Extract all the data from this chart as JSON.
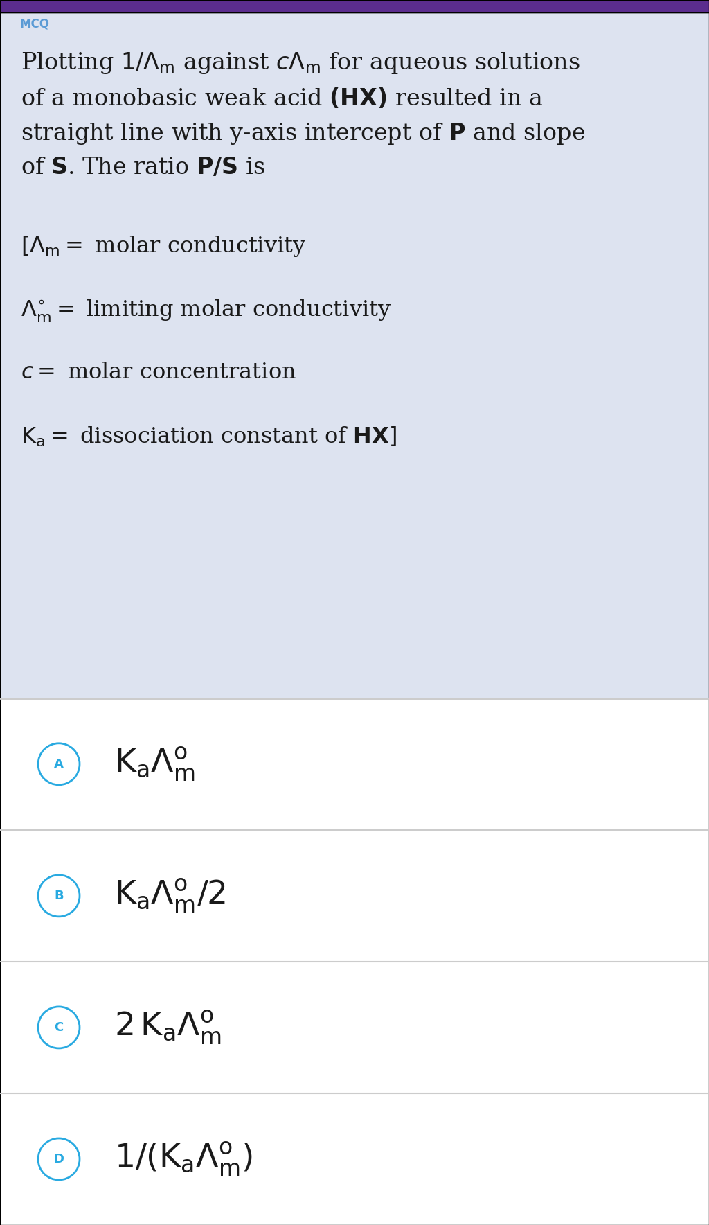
{
  "mcq_label": "MCQ",
  "mcq_label_color": "#5b9bd5",
  "header_bar_color": "#5b2d8e",
  "bg_color": "#dde3f0",
  "white_bg": "#ffffff",
  "option_bg": "#ffffff",
  "separator_color": "#cccccc",
  "text_color": "#1a1a1a",
  "option_circle_color": "#29aae1",
  "option_label_color": "#29aae1",
  "question": "Plotting $1/\\Lambda_{\\mathrm{m}}$ against $c\\Lambda_{\\mathrm{m}}$ for aqueous solutions\nof a monobasic weak acid $\\mathbf{(HX)}$ resulted in a\nstraight line with y-axis intercept of $\\mathbf{P}$ and slope\nof $\\mathbf{S}$. The ratio $\\mathbf{P/S}$ is",
  "definitions": [
    "$[\\Lambda_{\\mathrm{m}} = $ molar conductivity",
    "$\\Lambda^{\\circ}_{\\mathrm{m}} = $ limiting molar conductivity",
    "$c = $ molar concentration",
    "$\\mathrm{K_{a}} = $ dissociation constant of $\\mathbf{HX}]$"
  ],
  "options": [
    {
      "label": "A",
      "text": "$\\mathrm{K_{a}\\Lambda^{o}_{m}}$"
    },
    {
      "label": "B",
      "text": "$\\mathrm{K_{a}\\Lambda^{o}_{m}/2}$"
    },
    {
      "label": "C",
      "text": "$2\\,\\mathrm{K_{a}\\Lambda^{o}_{m}}$"
    },
    {
      "label": "D",
      "text": "$1/(\\mathrm{K_{a}\\Lambda^{o}_{m}})$"
    }
  ],
  "fig_width": 10.24,
  "fig_height": 17.68,
  "dpi": 100
}
